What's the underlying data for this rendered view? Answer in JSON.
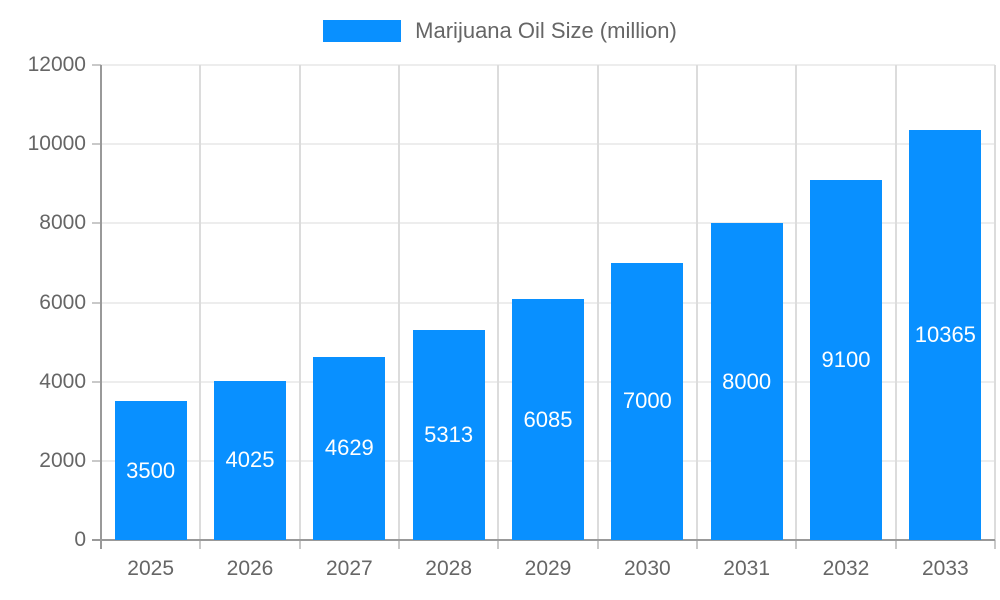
{
  "chart_data": {
    "type": "bar",
    "title": "Marijuana Oil Size (million)",
    "categories": [
      "2025",
      "2026",
      "2027",
      "2028",
      "2029",
      "2030",
      "2031",
      "2032",
      "2033"
    ],
    "series": [
      {
        "name": "Marijuana Oil Size (million)",
        "values": [
          3500,
          4025,
          4629,
          5313,
          6085,
          7000,
          8000,
          9100,
          10365
        ]
      }
    ],
    "xlabel": "",
    "ylabel": "",
    "ylim": [
      0,
      12000
    ],
    "ytick_step": 2000,
    "ytick_labels": [
      "0",
      "2000",
      "4000",
      "6000",
      "8000",
      "10000",
      "12000"
    ],
    "grid": true,
    "legend_position": "top",
    "bar_labels_inside": true,
    "colors": {
      "bar": "#0990FF",
      "bar_label": "#FFFFFF",
      "axis_text": "#666666",
      "legend_text": "#666666",
      "grid_h": "#EDEDED",
      "grid_v": "#DCDCDC",
      "axis_line": "#999999",
      "tick": "#C9C9C9",
      "background": "#FFFFFF"
    }
  }
}
